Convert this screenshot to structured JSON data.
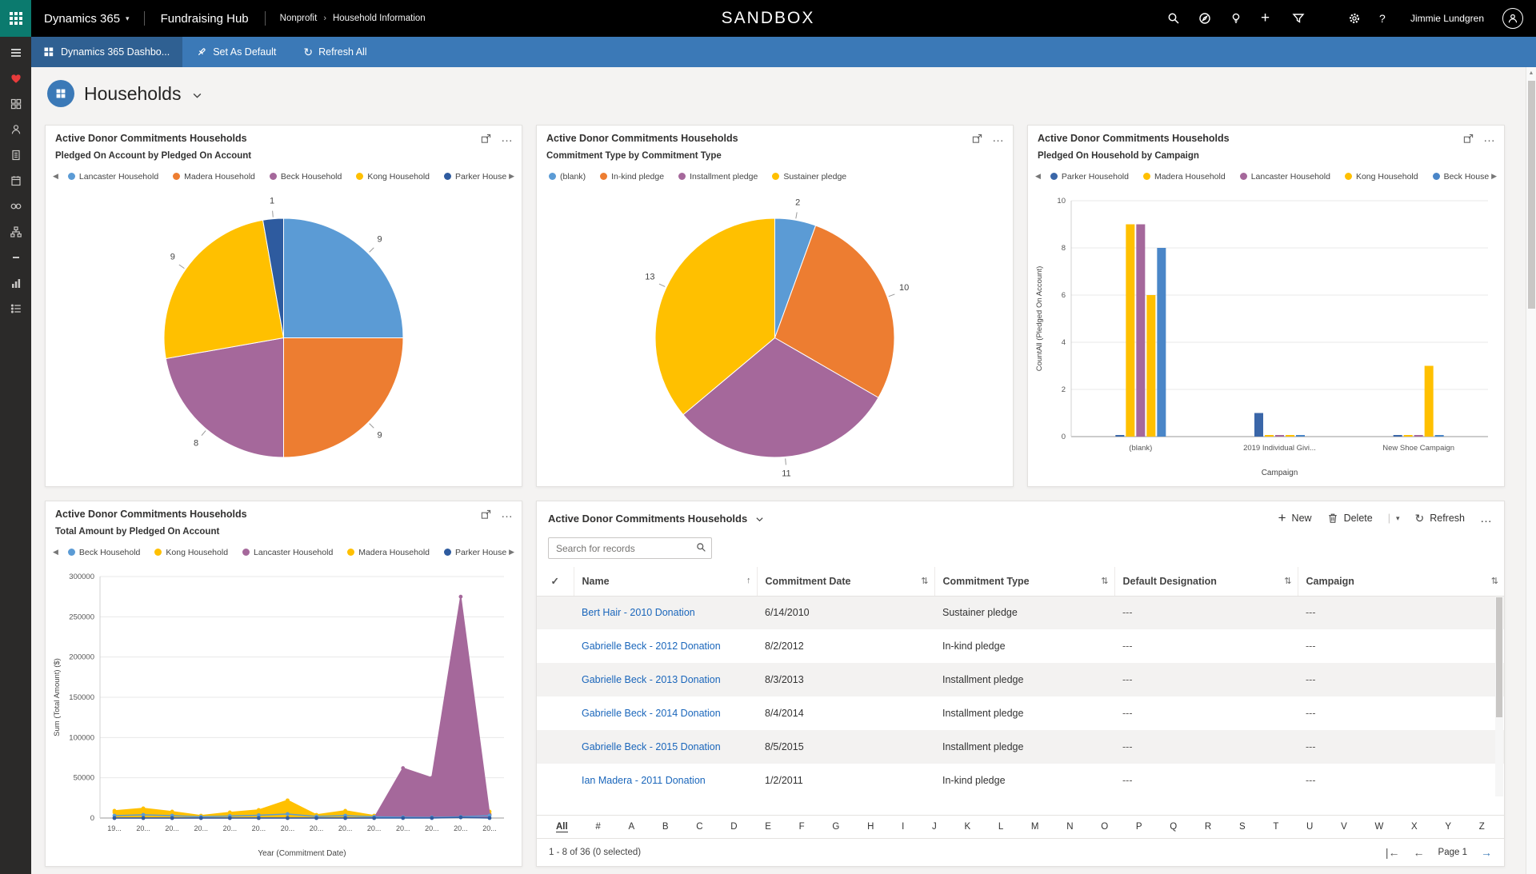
{
  "topbar": {
    "app_name": "Dynamics 365",
    "hub_name": "Fundraising Hub",
    "breadcrumb_area": "Nonprofit",
    "breadcrumb_page": "Household Information",
    "environment": "SANDBOX",
    "user_name": "Jimmie Lundgren"
  },
  "commandbar": {
    "dashboard_tab": "Dynamics 365 Dashbo...",
    "set_as_default_label": "Set As Default",
    "refresh_all_label": "Refresh All"
  },
  "page": {
    "title": "Households"
  },
  "colors": {
    "topbar_bg": "#000000",
    "command_bar_bg": "#3B79B7",
    "app_tile_bg": "#0B7A6E",
    "record_link": "#1A66BB",
    "sidebar_active_icon": "#E83B3B"
  },
  "grid": {
    "title": "Active Donor Commitments Households",
    "new_label": "New",
    "delete_label": "Delete",
    "refresh_label": "Refresh",
    "search_placeholder": "Search for records",
    "columns": [
      "Name",
      "Commitment Date",
      "Commitment Type",
      "Default Designation",
      "Campaign"
    ],
    "rows": [
      {
        "name": "Bert Hair - 2010 Donation",
        "commitment_date": "6/14/2010",
        "commitment_type": "Sustainer pledge",
        "default_designation": "---",
        "campaign": "---"
      },
      {
        "name": "Gabrielle Beck - 2012 Donation",
        "commitment_date": "8/2/2012",
        "commitment_type": "In-kind pledge",
        "default_designation": "---",
        "campaign": "---"
      },
      {
        "name": "Gabrielle Beck - 2013 Donation",
        "commitment_date": "8/3/2013",
        "commitment_type": "Installment pledge",
        "default_designation": "---",
        "campaign": "---"
      },
      {
        "name": "Gabrielle Beck - 2014 Donation",
        "commitment_date": "8/4/2014",
        "commitment_type": "Installment pledge",
        "default_designation": "---",
        "campaign": "---"
      },
      {
        "name": "Gabrielle Beck - 2015 Donation",
        "commitment_date": "8/5/2015",
        "commitment_type": "Installment pledge",
        "default_designation": "---",
        "campaign": "---"
      },
      {
        "name": "Ian Madera - 2011 Donation",
        "commitment_date": "1/2/2011",
        "commitment_type": "In-kind pledge",
        "default_designation": "---",
        "campaign": "---"
      }
    ],
    "jumpbar": [
      "All",
      "#",
      "A",
      "B",
      "C",
      "D",
      "E",
      "F",
      "G",
      "H",
      "I",
      "J",
      "K",
      "L",
      "M",
      "N",
      "O",
      "P",
      "Q",
      "R",
      "S",
      "T",
      "U",
      "V",
      "W",
      "X",
      "Y",
      "Z"
    ],
    "status": "1 - 8 of 36 (0 selected)",
    "page_label": "Page 1"
  },
  "chart_data": [
    {
      "type": "pie",
      "title": "Active Donor Commitments Households",
      "subtitle": "Pledged On Account by Pledged On Account",
      "legend_arrows": true,
      "series": [
        {
          "name": "Lancaster Household",
          "value": 9,
          "color": "#5B9BD5"
        },
        {
          "name": "Madera Household",
          "value": 9,
          "color": "#ED7D31"
        },
        {
          "name": "Beck Household",
          "value": 8,
          "color": "#A5689B"
        },
        {
          "name": "Kong Household",
          "value": 9,
          "color": "#FFC000"
        },
        {
          "name": "Parker Household",
          "value": 1,
          "color": "#2E5B9F"
        }
      ]
    },
    {
      "type": "pie",
      "title": "Active Donor Commitments Households",
      "subtitle": "Commitment Type by Commitment Type",
      "legend_arrows": false,
      "series": [
        {
          "name": "(blank)",
          "value": 2,
          "color": "#5B9BD5"
        },
        {
          "name": "In-kind pledge",
          "value": 10,
          "color": "#ED7D31"
        },
        {
          "name": "Installment pledge",
          "value": 11,
          "color": "#A5689B"
        },
        {
          "name": "Sustainer pledge",
          "value": 13,
          "color": "#FFC000"
        }
      ]
    },
    {
      "type": "bar",
      "title": "Active Donor Commitments Households",
      "subtitle": "Pledged On Household by Campaign",
      "legend_arrows": true,
      "categories": [
        "(blank)",
        "2019 Individual Givi...",
        "New Shoe Campaign"
      ],
      "series": [
        {
          "name": "Parker Household",
          "color": "#3A66A8",
          "values": [
            0,
            1,
            0
          ]
        },
        {
          "name": "Madera Household",
          "color": "#FFC000",
          "values": [
            9,
            0,
            0
          ]
        },
        {
          "name": "Lancaster Household",
          "color": "#A5689B",
          "values": [
            9,
            0,
            0
          ]
        },
        {
          "name": "Kong Household",
          "color": "#FFC000",
          "values": [
            6,
            0,
            3
          ]
        },
        {
          "name": "Beck Household",
          "color": "#4A86C8",
          "values": [
            8,
            0,
            0
          ]
        }
      ],
      "xlabel": "Campaign",
      "ylabel": "CountAll (Pledged On Account)",
      "ylim": [
        0,
        10
      ],
      "yticks": [
        0,
        2,
        4,
        6,
        8,
        10
      ]
    },
    {
      "type": "area",
      "title": "Active Donor Commitments Households",
      "subtitle": "Total Amount by Pledged On Account",
      "legend_arrows": true,
      "categories": [
        "19...",
        "20...",
        "20...",
        "20...",
        "20...",
        "20...",
        "20...",
        "20...",
        "20...",
        "20...",
        "20...",
        "20...",
        "20...",
        "20..."
      ],
      "series": [
        {
          "name": "Beck Household",
          "color": "#5B9BD5",
          "fill": false,
          "values": [
            3000,
            4000,
            3000,
            1500,
            2500,
            3500,
            5000,
            2000,
            3000,
            1500,
            1000,
            800,
            1500,
            3000
          ]
        },
        {
          "name": "Kong Household",
          "color": "#FFC000",
          "fill": true,
          "values": [
            9000,
            12000,
            8000,
            3000,
            7000,
            10000,
            22000,
            4000,
            9000,
            3000,
            2000,
            1500,
            2000,
            8000
          ]
        },
        {
          "name": "Lancaster Household",
          "color": "#A5689B",
          "fill": true,
          "values": [
            0,
            0,
            0,
            0,
            0,
            0,
            0,
            0,
            0,
            0,
            62000,
            50000,
            275000,
            4000
          ]
        },
        {
          "name": "Madera Household",
          "color": "#FFC000",
          "fill": true,
          "values": [
            7000,
            9000,
            6000,
            2000,
            5000,
            7000,
            12000,
            3000,
            6000,
            2000,
            1500,
            1000,
            1500,
            5000
          ]
        },
        {
          "name": "Parker Household",
          "color": "#2E5B9F",
          "fill": false,
          "values": [
            0,
            0,
            0,
            0,
            0,
            0,
            0,
            0,
            0,
            0,
            0,
            0,
            800,
            0
          ]
        }
      ],
      "draw_order": [
        3,
        1,
        2,
        0,
        4
      ],
      "xlabel": "Year (Commitment Date)",
      "ylabel": "Sum (Total Amount) ($)",
      "ylim": [
        0,
        300000
      ],
      "yticks": [
        0,
        50000,
        100000,
        150000,
        200000,
        250000,
        300000
      ]
    }
  ]
}
